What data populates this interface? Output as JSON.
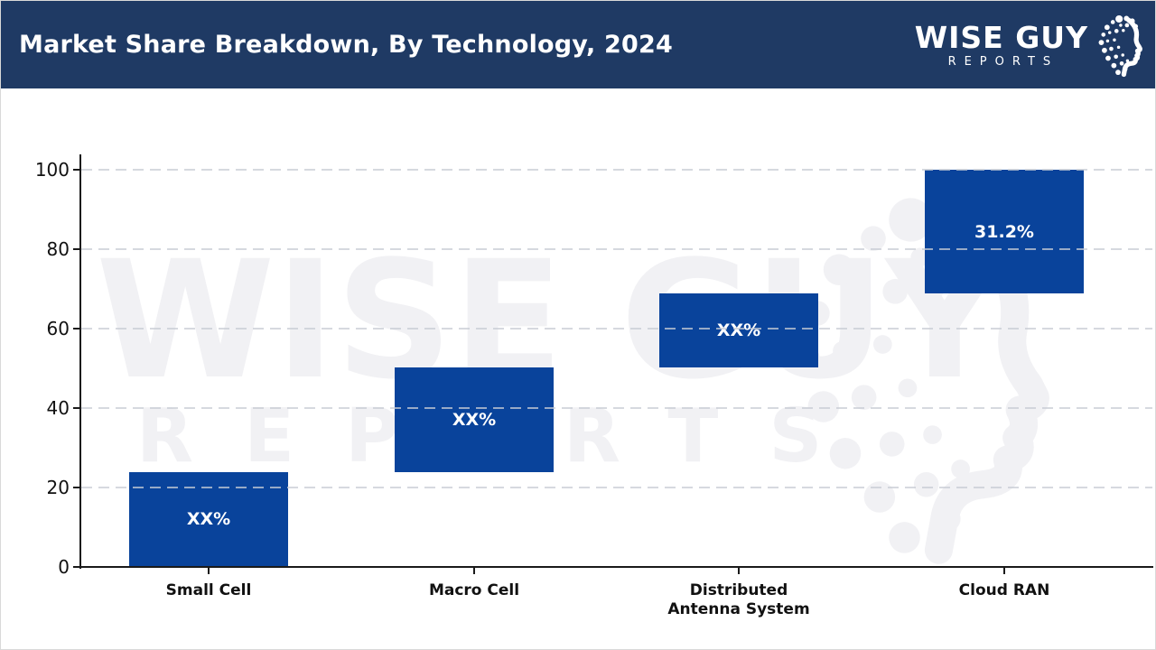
{
  "header": {
    "title": "Market Share Breakdown, By Technology, 2024",
    "logo": {
      "line1": "WISE GUY",
      "line2": "REPORTS"
    }
  },
  "watermark": {
    "line1": "WISE GUY",
    "line2": "REPORTS"
  },
  "colors": {
    "header_bg": "#1f3a64",
    "bar_blue": "#09439b",
    "axis": "#1a1a1a",
    "grid_dash": "#c8ccd4",
    "watermark": "#f1f1f4",
    "bar_label": "#ffffff",
    "tick_label": "#111111"
  },
  "chart_data": {
    "type": "bar",
    "subtype": "waterfall-floating-bars",
    "title": "Market Share Breakdown, By Technology, 2024",
    "categories": [
      "Small Cell",
      "Macro Cell",
      "Distributed Antenna System",
      "Cloud RAN"
    ],
    "category_display": [
      "Small Cell",
      "Macro Cell",
      "Distributed\nAntenna System",
      "Cloud RAN"
    ],
    "segments": [
      {
        "category": "Small Cell",
        "start": 0,
        "end": 23.9,
        "value": 23.9,
        "label": "XX%"
      },
      {
        "category": "Macro Cell",
        "start": 23.9,
        "end": 50.2,
        "value": 26.3,
        "label": "XX%"
      },
      {
        "category": "Distributed Antenna System",
        "start": 50.2,
        "end": 68.8,
        "value": 18.6,
        "label": "XX%"
      },
      {
        "category": "Cloud RAN",
        "start": 68.8,
        "end": 100,
        "value": 31.2,
        "label": "31.2%"
      }
    ],
    "xlabel": "",
    "ylabel": "",
    "ylim": [
      0,
      100
    ],
    "yticks": [
      0,
      20,
      40,
      60,
      80,
      100
    ],
    "grid": "horizontal dashed, drawn over bars",
    "legend_position": "none"
  }
}
